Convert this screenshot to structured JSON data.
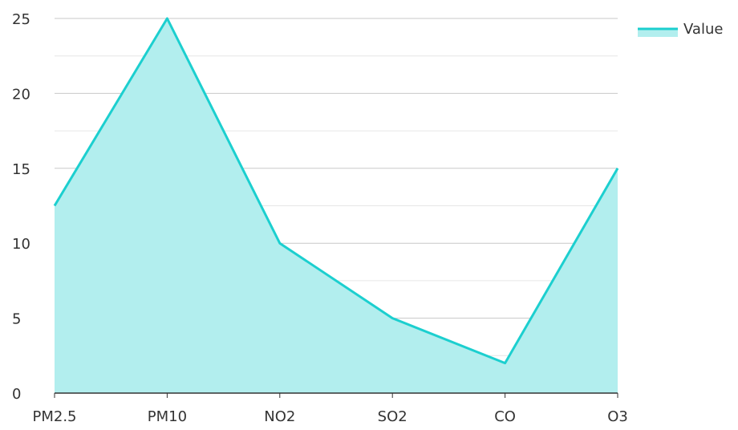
{
  "chart_data": {
    "type": "area",
    "categories": [
      "PM2.5",
      "PM10",
      "NO2",
      "SO2",
      "CO",
      "O3"
    ],
    "series": [
      {
        "name": "Value",
        "values": [
          12.5,
          25,
          10,
          5,
          2,
          15
        ]
      }
    ],
    "ylim": [
      0,
      25
    ],
    "yticks": [
      "0",
      "5",
      "10",
      "15",
      "20",
      "25"
    ],
    "grid": true,
    "legend_position": "top-right",
    "colors": {
      "line": "#1ccfcf",
      "fill": "#b2eeee",
      "grid_major": "#c8c8c8",
      "grid_minor": "#e6e6e6",
      "axis": "#333333"
    }
  }
}
